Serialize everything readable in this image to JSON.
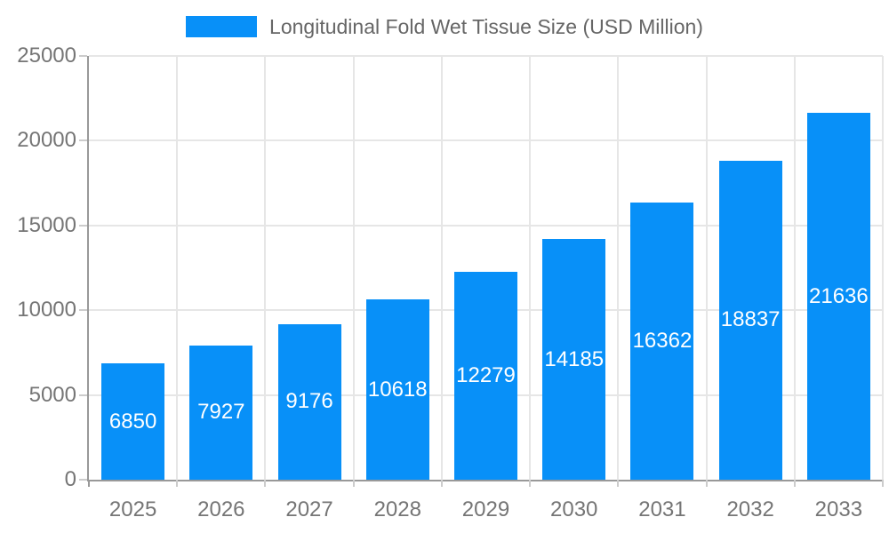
{
  "legend": {
    "label": "Longitudinal Fold Wet Tissue Size (USD Million)"
  },
  "chart_data": {
    "type": "bar",
    "title": "Longitudinal Fold Wet Tissue Size (USD Million)",
    "categories": [
      "2025",
      "2026",
      "2027",
      "2028",
      "2029",
      "2030",
      "2031",
      "2032",
      "2033"
    ],
    "values": [
      6850,
      7927,
      9176,
      10618,
      12279,
      14185,
      16362,
      18837,
      21636
    ],
    "series": [
      {
        "name": "Longitudinal Fold Wet Tissue Size (USD Million)",
        "values": [
          6850,
          7927,
          9176,
          10618,
          12279,
          14185,
          16362,
          18837,
          21636
        ]
      }
    ],
    "xlabel": "",
    "ylabel": "",
    "ylim": [
      0,
      25000
    ],
    "yticks": [
      0,
      5000,
      10000,
      15000,
      20000,
      25000
    ],
    "grid": true,
    "legend_position": "top",
    "value_labels": "inside-center"
  },
  "colors": {
    "bar": "#0890F8",
    "axis_line": "#999999",
    "gridline": "#E6E6E6",
    "tick": "#CCCCCC",
    "axis_text": "#757575",
    "legend_text": "#666666",
    "value_label": "#FFFFFF",
    "background": "#FFFFFF"
  }
}
